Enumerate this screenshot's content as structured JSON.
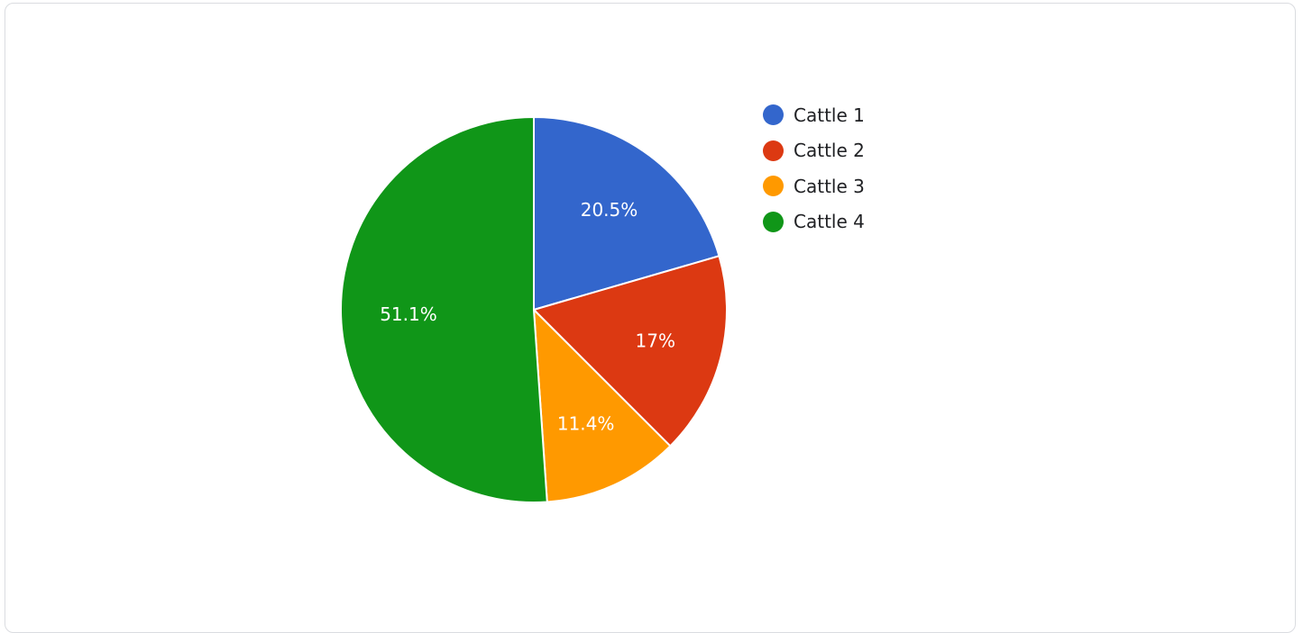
{
  "chart_data": {
    "type": "pie",
    "title": "",
    "categories": [
      "Cattle 1",
      "Cattle 2",
      "Cattle 3",
      "Cattle 4"
    ],
    "values": [
      20.5,
      17,
      11.4,
      51.1
    ],
    "data_labels": [
      "20.5%",
      "17%",
      "11.4%",
      "51.1%"
    ],
    "colors": [
      "#3366cc",
      "#dc3912",
      "#ff9900",
      "#109618"
    ],
    "legend_position": "right",
    "start_angle": "top, clockwise"
  }
}
